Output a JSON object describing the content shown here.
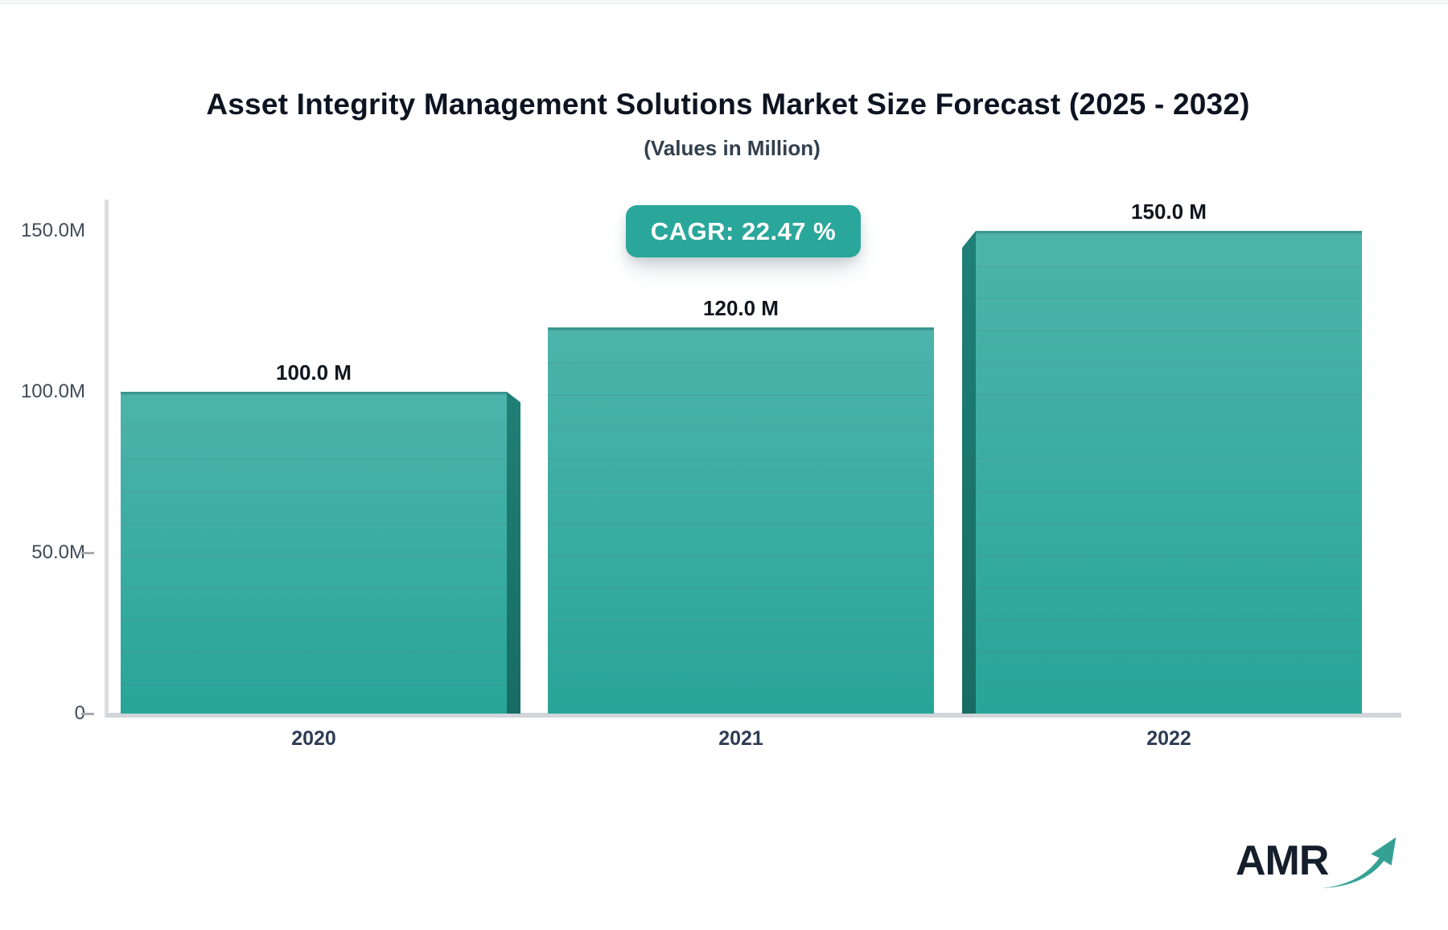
{
  "chart_data": {
    "type": "bar",
    "title": "Asset Integrity Management Solutions Market Size Forecast (2025 - 2032)",
    "subtitle": "(Values in Million)",
    "annotation": "CAGR: 22.47 %",
    "categories": [
      "2020",
      "2021",
      "2022"
    ],
    "values": [
      100.0,
      120.0,
      150.0
    ],
    "unit": "Million",
    "bar_labels": [
      "100.0 M",
      "120.0 M",
      "150.0 M"
    ],
    "yticks": [
      {
        "label": "150.0M",
        "value": 150,
        "tick_mark": false
      },
      {
        "label": "100.0M",
        "value": 100,
        "tick_mark": false
      },
      {
        "label": "50.0M",
        "value": 50,
        "tick_mark": true
      },
      {
        "label": "0",
        "value": 0,
        "tick_mark": true
      }
    ],
    "ylim": [
      0,
      150
    ],
    "grid": "off",
    "legend": "none",
    "bar_color_top": "#4cb4ab",
    "bar_color_bottom": "#28a598"
  },
  "colors": {
    "accent_teal": "#2aa79b",
    "bar_side_top": "#1f8076",
    "bar_side_bottom": "#186c63",
    "title_text": "#0d1421",
    "subtitle_text": "#32404e",
    "axis_label_text": "#3f4b57",
    "year_label_text": "#2e3c55",
    "axis_line": "#dcdde1",
    "baseline": "#d2d5da",
    "logo_text": "#141f2b",
    "logo_arrow": "#35a193"
  },
  "logo": {
    "text": "AMR"
  }
}
